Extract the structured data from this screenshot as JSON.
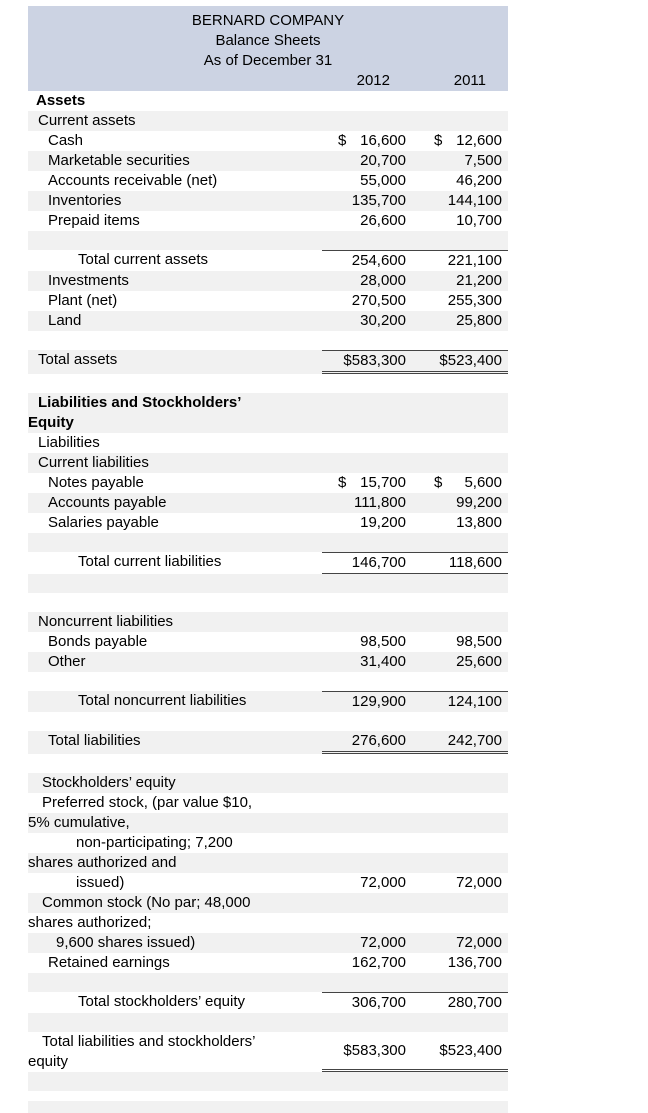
{
  "colors": {
    "header_bg": "#ccd3e3",
    "stripe": "#f1f1f1",
    "rule": "#444444"
  },
  "header": {
    "company": "BERNARD COMPANY",
    "report": "Balance Sheets",
    "period": "As of December 31",
    "col_2012": "2012",
    "col_2011": "2011"
  },
  "rows": [
    {
      "lines": [
        {
          "t": "Assets",
          "p": 8
        }
      ],
      "b": true,
      "sh": false
    },
    {
      "lines": [
        {
          "t": "Current assets",
          "p": 10
        }
      ],
      "sh": true
    },
    {
      "lines": [
        {
          "t": "Cash",
          "p": 20
        }
      ],
      "c1": {
        "s": "$",
        "n": "16,600"
      },
      "c2": {
        "s": "$",
        "n": "12,600"
      },
      "sh": false
    },
    {
      "lines": [
        {
          "t": "Marketable securities",
          "p": 20
        }
      ],
      "c1": {
        "s": "",
        "n": "20,700"
      },
      "c2": {
        "s": "",
        "n": "7,500"
      },
      "sh": true
    },
    {
      "lines": [
        {
          "t": "Accounts receivable (net)",
          "p": 20
        }
      ],
      "c1": {
        "s": "",
        "n": "55,000"
      },
      "c2": {
        "s": "",
        "n": "46,200"
      },
      "sh": false
    },
    {
      "lines": [
        {
          "t": "Inventories",
          "p": 20
        }
      ],
      "c1": {
        "s": "",
        "n": "135,700"
      },
      "c2": {
        "s": "",
        "n": "144,100"
      },
      "sh": true
    },
    {
      "lines": [
        {
          "t": "Prepaid items",
          "p": 20
        }
      ],
      "c1": {
        "s": "",
        "n": "26,600"
      },
      "c2": {
        "s": "",
        "n": "10,700"
      },
      "sh": false
    },
    {
      "bl": true,
      "sh": true,
      "h": 19
    },
    {
      "lines": [
        {
          "t": "Total current assets",
          "p": 50
        }
      ],
      "c1": {
        "s": "",
        "n": "254,600"
      },
      "c2": {
        "s": "",
        "n": "221,100"
      },
      "rt": true,
      "sh": false
    },
    {
      "lines": [
        {
          "t": "Investments",
          "p": 20
        }
      ],
      "c1": {
        "s": "",
        "n": "28,000"
      },
      "c2": {
        "s": "",
        "n": "21,200"
      },
      "sh": true
    },
    {
      "lines": [
        {
          "t": "Plant (net)",
          "p": 20
        }
      ],
      "c1": {
        "s": "",
        "n": "270,500"
      },
      "c2": {
        "s": "",
        "n": "255,300"
      },
      "sh": false
    },
    {
      "lines": [
        {
          "t": "Land",
          "p": 20
        }
      ],
      "c1": {
        "s": "",
        "n": "30,200"
      },
      "c2": {
        "s": "",
        "n": "25,800"
      },
      "sh": true
    },
    {
      "bl": true,
      "sh": false,
      "h": 19
    },
    {
      "lines": [
        {
          "t": "Total assets",
          "p": 10
        }
      ],
      "c1": {
        "s": "",
        "n": "$583,300"
      },
      "c2": {
        "s": "",
        "n": "$523,400"
      },
      "rt": true,
      "rb": 2,
      "sh": true
    },
    {
      "bl": true,
      "sh": false,
      "h": 19
    },
    {
      "lines": [
        {
          "t": "Liabilities and Stockholders’",
          "p": 10
        },
        {
          "t": "Equity",
          "p": 0
        }
      ],
      "b": true,
      "sh": true
    },
    {
      "lines": [
        {
          "t": "Liabilities",
          "p": 10
        }
      ],
      "sh": false
    },
    {
      "lines": [
        {
          "t": "Current liabilities",
          "p": 10
        }
      ],
      "sh": true
    },
    {
      "lines": [
        {
          "t": "Notes payable",
          "p": 20
        }
      ],
      "c1": {
        "s": "$",
        "n": "15,700"
      },
      "c2": {
        "s": "$",
        "n": "5,600"
      },
      "sh": false
    },
    {
      "lines": [
        {
          "t": "Accounts payable",
          "p": 20
        }
      ],
      "c1": {
        "s": "",
        "n": "111,800"
      },
      "c2": {
        "s": "",
        "n": "99,200"
      },
      "sh": true
    },
    {
      "lines": [
        {
          "t": "Salaries payable",
          "p": 20
        }
      ],
      "c1": {
        "s": "",
        "n": "19,200"
      },
      "c2": {
        "s": "",
        "n": "13,800"
      },
      "sh": false
    },
    {
      "bl": true,
      "sh": true,
      "h": 19
    },
    {
      "lines": [
        {
          "t": "Total current liabilities",
          "p": 50
        }
      ],
      "c1": {
        "s": "",
        "n": "146,700"
      },
      "c2": {
        "s": "",
        "n": "118,600"
      },
      "rt": true,
      "rb": 1,
      "sh": false
    },
    {
      "bl": true,
      "sh": true,
      "h": 19
    },
    {
      "bl": true,
      "sh": false,
      "h": 19
    },
    {
      "lines": [
        {
          "t": "Noncurrent liabilities",
          "p": 10
        }
      ],
      "sh": true
    },
    {
      "lines": [
        {
          "t": "Bonds payable",
          "p": 20
        }
      ],
      "c1": {
        "s": "",
        "n": "98,500"
      },
      "c2": {
        "s": "",
        "n": "98,500"
      },
      "sh": false
    },
    {
      "lines": [
        {
          "t": "Other",
          "p": 20
        }
      ],
      "c1": {
        "s": "",
        "n": "31,400"
      },
      "c2": {
        "s": "",
        "n": "25,600"
      },
      "sh": true
    },
    {
      "bl": true,
      "sh": false,
      "h": 19
    },
    {
      "lines": [
        {
          "t": "Total noncurrent liabilities",
          "p": 50
        }
      ],
      "c1": {
        "s": "",
        "n": "129,900"
      },
      "c2": {
        "s": "",
        "n": "124,100"
      },
      "rt": true,
      "sh": true
    },
    {
      "bl": true,
      "sh": false,
      "h": 19
    },
    {
      "lines": [
        {
          "t": "Total liabilities",
          "p": 20
        }
      ],
      "c1": {
        "s": "",
        "n": "276,600"
      },
      "c2": {
        "s": "",
        "n": "242,700"
      },
      "rb": 2,
      "sh": true
    },
    {
      "bl": true,
      "sh": false,
      "h": 19
    },
    {
      "lines": [
        {
          "t": "Stockholders’ equity",
          "p": 14
        }
      ],
      "sh": true
    },
    {
      "lines": [
        {
          "t": "Preferred stock, (par value $10,",
          "p": 14
        }
      ],
      "sh": false
    },
    {
      "lines": [
        {
          "t": "5% cumulative,",
          "p": 0
        }
      ],
      "sh": true
    },
    {
      "lines": [
        {
          "t": "non-participating; 7,200",
          "p": 48
        }
      ],
      "sh": false
    },
    {
      "lines": [
        {
          "t": "shares authorized and",
          "p": 0
        }
      ],
      "sh": true
    },
    {
      "lines": [
        {
          "t": "issued)",
          "p": 48
        }
      ],
      "c1": {
        "s": "",
        "n": "72,000"
      },
      "c2": {
        "s": "",
        "n": "72,000"
      },
      "sh": false
    },
    {
      "lines": [
        {
          "t": "Common stock (No par; 48,000",
          "p": 14
        }
      ],
      "sh": true
    },
    {
      "lines": [
        {
          "t": "shares authorized;",
          "p": 0
        }
      ],
      "sh": false
    },
    {
      "lines": [
        {
          "t": "9,600 shares issued)",
          "p": 28
        }
      ],
      "c1": {
        "s": "",
        "n": "72,000"
      },
      "c2": {
        "s": "",
        "n": "72,000"
      },
      "sh": true
    },
    {
      "lines": [
        {
          "t": "Retained earnings",
          "p": 20
        }
      ],
      "c1": {
        "s": "",
        "n": "162,700"
      },
      "c2": {
        "s": "",
        "n": "136,700"
      },
      "sh": false
    },
    {
      "bl": true,
      "sh": true,
      "h": 19
    },
    {
      "lines": [
        {
          "t": "Total stockholders’ equity",
          "p": 50
        }
      ],
      "c1": {
        "s": "",
        "n": "306,700"
      },
      "c2": {
        "s": "",
        "n": "280,700"
      },
      "rt": true,
      "sh": false
    },
    {
      "bl": true,
      "sh": true,
      "h": 19
    },
    {
      "lines": [
        {
          "t": "Total liabilities and stockholders’",
          "p": 14
        },
        {
          "t": "equity",
          "p": 0
        }
      ],
      "c1": {
        "s": "",
        "n": "$583,300"
      },
      "c2": {
        "s": "",
        "n": "$523,400"
      },
      "rb": 2,
      "va": "center",
      "sh": false
    },
    {
      "bl": true,
      "sh": true,
      "h": 19
    },
    {
      "bl": true,
      "sh": false,
      "h": 10
    },
    {
      "bl": true,
      "sh": true,
      "h": 12
    }
  ]
}
